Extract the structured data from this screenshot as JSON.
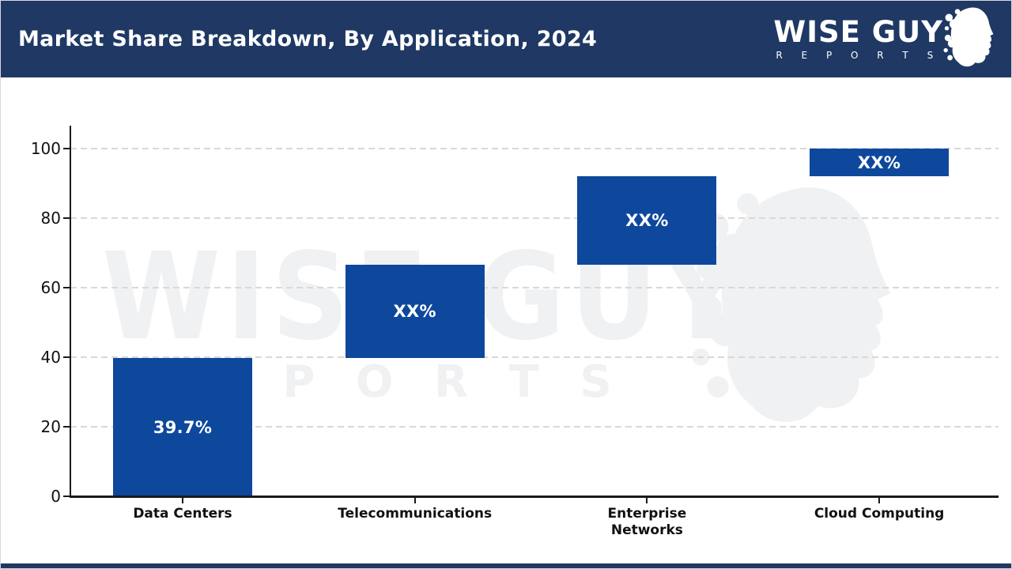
{
  "header": {
    "title": "Market Share Breakdown, By Application, 2024",
    "bg_color": "#1f3864",
    "logo": {
      "line1": "WISE GUY",
      "line2": "R E P O R T S"
    }
  },
  "watermark": {
    "line1": "WISE GUY.",
    "line2": "R E P O R T S"
  },
  "chart_data": {
    "type": "bar",
    "subtype": "waterfall",
    "title": "Market Share Breakdown, By Application, 2024",
    "categories": [
      "Data Centers",
      "Telecommunications",
      "Enterprise Networks",
      "Cloud Computing"
    ],
    "categories_display": [
      [
        "Data Centers"
      ],
      [
        "Telecommunications"
      ],
      [
        "Enterprise",
        "Networks"
      ],
      [
        "Cloud Computing"
      ]
    ],
    "segments": [
      {
        "category": "Data Centers",
        "label": "39.7%",
        "start": 0,
        "end": 39.7
      },
      {
        "category": "Telecommunications",
        "label": "XX%",
        "start": 39.7,
        "end": 66.7
      },
      {
        "category": "Enterprise Networks",
        "label": "XX%",
        "start": 66.7,
        "end": 92.0
      },
      {
        "category": "Cloud Computing",
        "label": "XX%",
        "start": 92.0,
        "end": 100.0
      }
    ],
    "values": [
      39.7,
      27.0,
      25.3,
      8.0
    ],
    "ylim": [
      0,
      100
    ],
    "yticks": [
      0,
      20,
      40,
      60,
      80,
      100
    ],
    "grid": "horizontal-dashed",
    "grid_color": "#d9d9d9",
    "axis_color": "#1a1a1a",
    "bar_color": "#0e489c",
    "value_label_color": "#ffffff",
    "legend": "none"
  }
}
